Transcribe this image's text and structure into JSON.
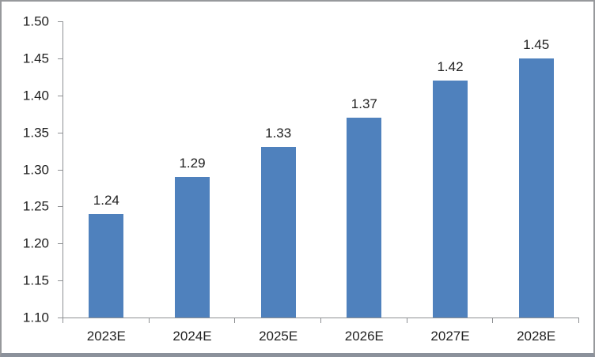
{
  "chart_data": {
    "type": "bar",
    "title": "",
    "xlabel": "",
    "ylabel": "",
    "categories": [
      "2023E",
      "2024E",
      "2025E",
      "2026E",
      "2027E",
      "2028E"
    ],
    "values": [
      1.24,
      1.29,
      1.33,
      1.37,
      1.42,
      1.45
    ],
    "value_labels": [
      "1.24",
      "1.29",
      "1.33",
      "1.37",
      "1.42",
      "1.45"
    ],
    "y_tick_labels": [
      "1.50",
      "1.45",
      "1.40",
      "1.35",
      "1.30",
      "1.25",
      "1.20",
      "1.15",
      "1.10"
    ],
    "ylim": [
      1.1,
      1.5
    ],
    "y_tick_step": 0.05,
    "grid": false,
    "legend": false,
    "colors": {
      "bar_fill": "#4f81bd",
      "axis_line": "#8e9093",
      "tick_mark": "#8e9093",
      "label_text": "#212121",
      "background": "#ffffff",
      "frame_border": "#97999c"
    }
  }
}
